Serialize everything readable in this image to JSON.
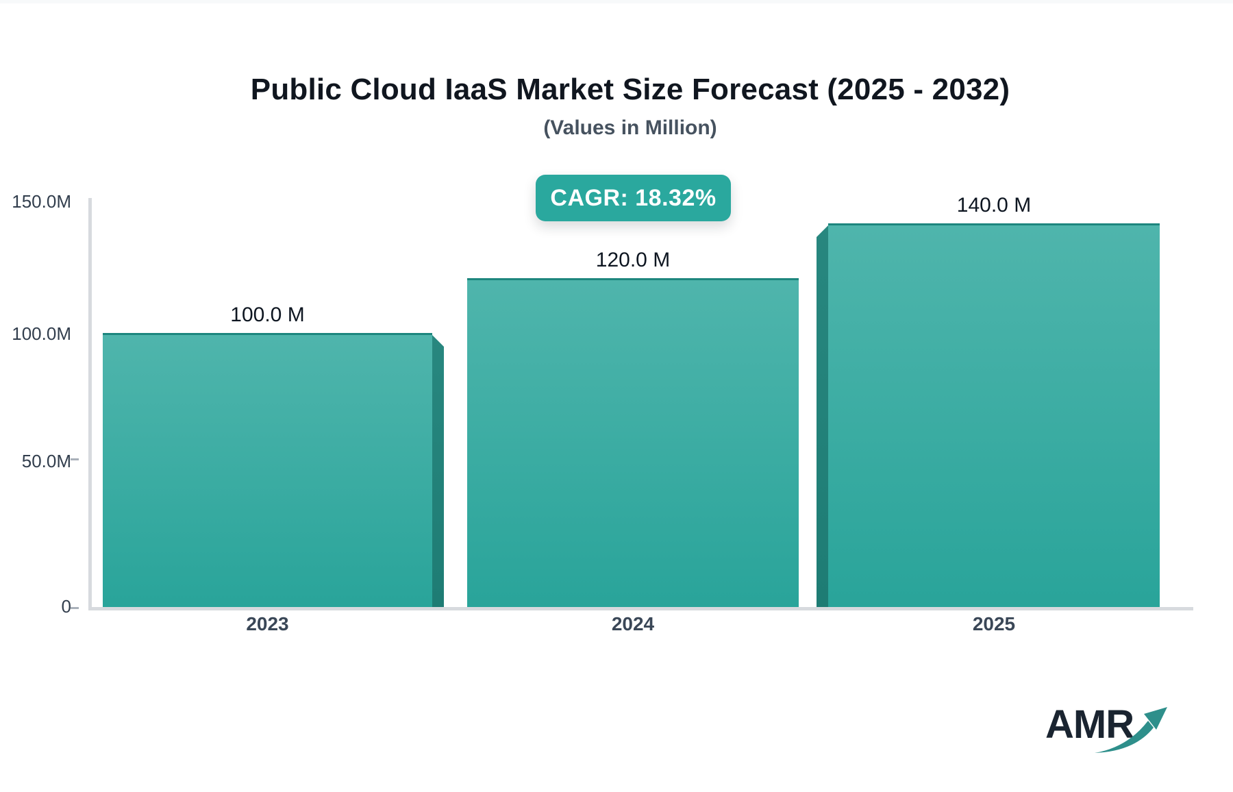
{
  "header": {
    "title": "Public Cloud IaaS Market Size Forecast (2025 - 2032)",
    "subtitle": "(Values in Million)"
  },
  "cagr_badge": {
    "label": "CAGR: 18.32%",
    "value_percent": 18.32
  },
  "chart_data": {
    "type": "bar",
    "title": "Public Cloud IaaS Market Size Forecast (2025 - 2032)",
    "subtitle": "(Values in Million)",
    "unit": "Million",
    "categories": [
      "2023",
      "2024",
      "2025"
    ],
    "values": [
      100,
      120,
      140
    ],
    "value_labels": [
      "100.0 M",
      "120.0 M",
      "140.0 M"
    ],
    "y_ticks": [
      "150.0M",
      "100.0M",
      "50.0M",
      "0"
    ],
    "ylim": [
      0,
      150
    ],
    "grid": false,
    "legend": false,
    "bar_style": "3d-bevel",
    "colors": {
      "bar_top": "#4FB5AC",
      "bar_bottom": "#29A49A",
      "bar_border": "#1D867E",
      "bar_side": "#1E7C74",
      "axis": "#D7DADE",
      "badge": "#2AA89E"
    }
  },
  "logo": {
    "text": "AMR",
    "arrow_color": "#2E8F8B",
    "text_color": "#1A2430"
  }
}
